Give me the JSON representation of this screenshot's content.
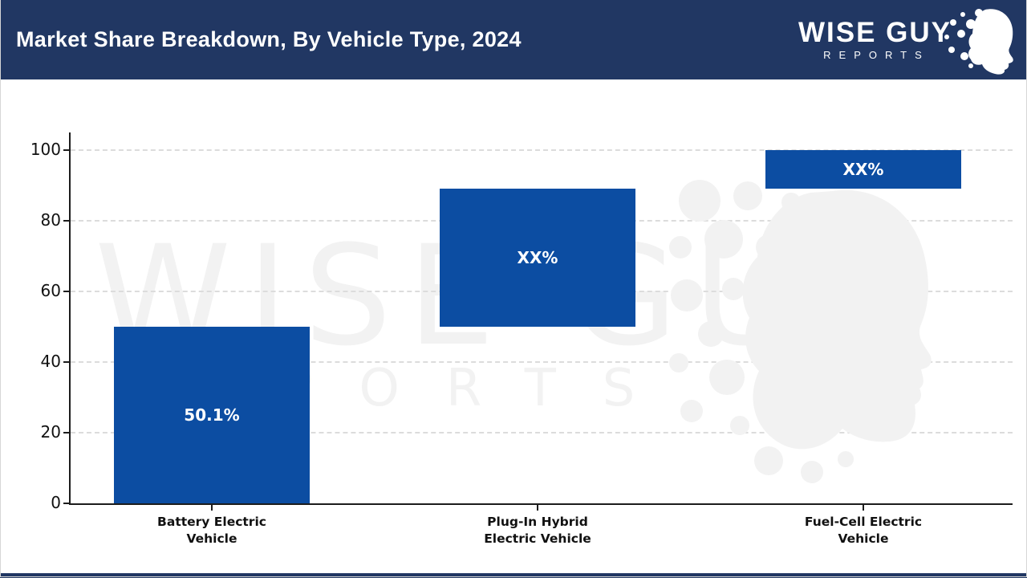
{
  "header": {
    "title": "Market Share Breakdown, By Vehicle Type, 2024",
    "logo": {
      "line1": "WISE GUY",
      "line2": "REPORTS"
    }
  },
  "watermark": {
    "line1": "WISE GUY",
    "line2": "REPORTS"
  },
  "colors": {
    "header_bg": "#213763",
    "bar": "#0c4da2",
    "grid": "#dcdcdc",
    "axis": "#1c1c1c",
    "watermark": "#f2f2f2",
    "bar_label": "#ffffff"
  },
  "chart_data": {
    "type": "bar",
    "subtype": "floating-waterfall",
    "title": "Market Share Breakdown, By Vehicle Type, 2024",
    "categories": [
      [
        "Battery Electric",
        "Vehicle"
      ],
      [
        "Plug-In Hybrid",
        "Electric Vehicle"
      ],
      [
        "Fuel-Cell Electric",
        "Vehicle"
      ]
    ],
    "segments": [
      {
        "start": 0,
        "end": 50.1,
        "label": "50.1%"
      },
      {
        "start": 50.1,
        "end": 89.1,
        "label": "XX%"
      },
      {
        "start": 89.1,
        "end": 100,
        "label": "XX%"
      }
    ],
    "ylim": [
      0,
      100
    ],
    "yticks": [
      0,
      20,
      40,
      60,
      80,
      100
    ],
    "grid": "dashed horizontal",
    "legend_position": "none"
  }
}
